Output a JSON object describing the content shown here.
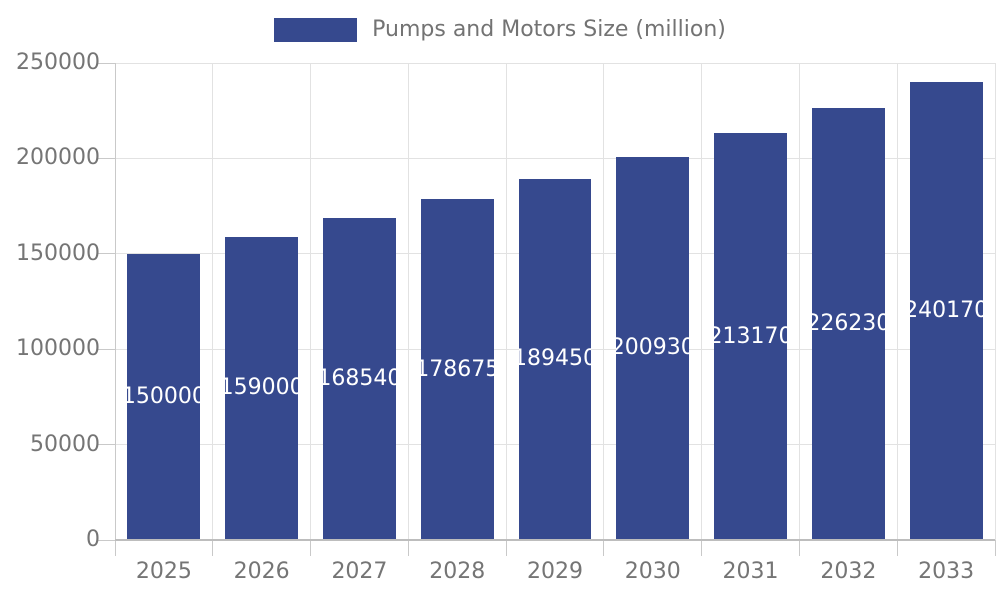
{
  "legend": {
    "label": "Pumps and Motors Size (million)"
  },
  "chart_data": {
    "type": "bar",
    "title": "Pumps and Motors Size (million)",
    "categories": [
      "2025",
      "2026",
      "2027",
      "2028",
      "2029",
      "2030",
      "2031",
      "2032",
      "2033"
    ],
    "series": [
      {
        "name": "Pumps and Motors Size (million)",
        "values": [
          150000,
          159000,
          168540,
          178675,
          189450,
          200930,
          213170,
          226230,
          240170
        ]
      }
    ],
    "bar_labels": [
      "150000",
      "159000",
      "168540",
      "178675",
      "189450",
      "200930",
      "213170",
      "226230",
      "240170"
    ],
    "xlabel": "",
    "ylabel": "",
    "ylim": [
      0,
      250000
    ],
    "yticks": [
      0,
      50000,
      100000,
      150000,
      200000,
      250000
    ],
    "ytick_labels": [
      "0",
      "50000",
      "100000",
      "150000",
      "200000",
      "250000"
    ],
    "grid": true,
    "legend_position": "top-center"
  },
  "colors": {
    "bar": "#36498e",
    "bar_label_text": "#ffffff",
    "axis_text": "#757575",
    "legend_text": "#737373",
    "gridline": "#e2e2e2",
    "axis_line": "#c9c9c9",
    "background": "#ffffff"
  }
}
